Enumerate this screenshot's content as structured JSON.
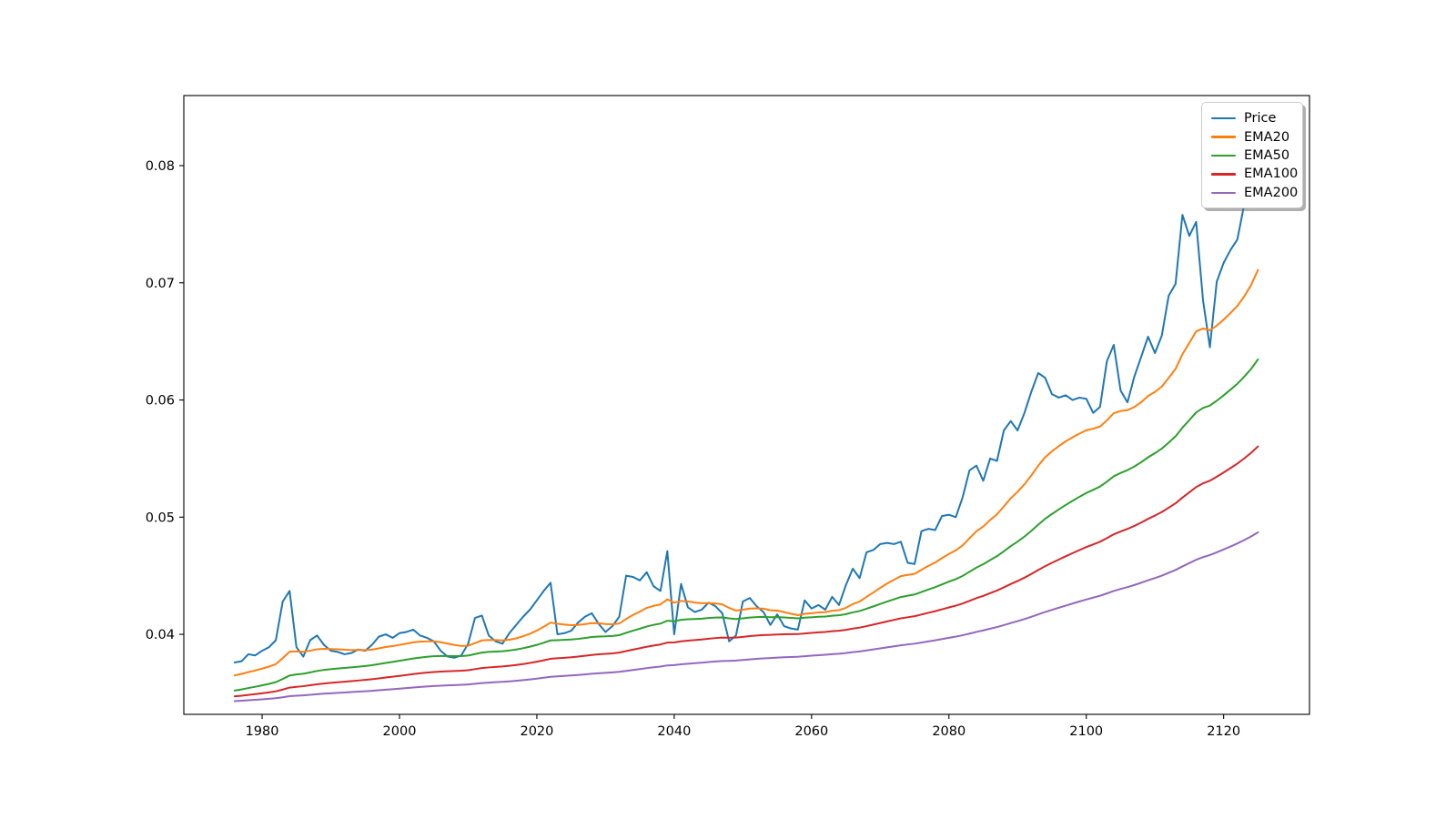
{
  "figure": {
    "background": "#ffffff",
    "spine_color": "#000000"
  },
  "chart_data": {
    "type": "line",
    "title": "",
    "xlabel": "",
    "ylabel": "",
    "grid": false,
    "legend_position": "upper right",
    "x_range": [
      1976,
      2125
    ],
    "x_step": 1,
    "xlim": [
      1968.6,
      2132.5
    ],
    "ylim": [
      0.03317,
      0.08598
    ],
    "xticks": [
      1980,
      2000,
      2020,
      2040,
      2060,
      2080,
      2100,
      2120
    ],
    "xtick_labels": [
      "1980",
      "2000",
      "2020",
      "2040",
      "2060",
      "2080",
      "2100",
      "2120"
    ],
    "yticks": [
      0.04,
      0.05,
      0.06,
      0.07,
      0.08
    ],
    "ytick_labels": [
      "0.04",
      "0.05",
      "0.06",
      "0.07",
      "0.08"
    ],
    "series": [
      {
        "name": "Price",
        "color": "#1f77b4",
        "values": [
          0.0376,
          0.0377,
          0.0383,
          0.0382,
          0.0386,
          0.0389,
          0.0395,
          0.0428,
          0.0437,
          0.0389,
          0.0381,
          0.0395,
          0.0399,
          0.0391,
          0.0386,
          0.0385,
          0.0383,
          0.0384,
          0.0387,
          0.0386,
          0.0391,
          0.0398,
          0.04,
          0.0397,
          0.0401,
          0.0402,
          0.0404,
          0.0399,
          0.0397,
          0.0394,
          0.0386,
          0.0381,
          0.038,
          0.0382,
          0.0392,
          0.0414,
          0.0416,
          0.0399,
          0.0394,
          0.0392,
          0.0401,
          0.0408,
          0.0415,
          0.0421,
          0.0429,
          0.0437,
          0.0444,
          0.04,
          0.0401,
          0.0403,
          0.041,
          0.0415,
          0.0418,
          0.0409,
          0.0402,
          0.0407,
          0.0415,
          0.045,
          0.0449,
          0.0446,
          0.0453,
          0.0441,
          0.0437,
          0.0471,
          0.04,
          0.0443,
          0.0423,
          0.0419,
          0.0421,
          0.0427,
          0.0424,
          0.0418,
          0.0394,
          0.0399,
          0.0428,
          0.0431,
          0.0424,
          0.0419,
          0.0408,
          0.0417,
          0.0407,
          0.0405,
          0.0404,
          0.0429,
          0.0422,
          0.0425,
          0.0421,
          0.0432,
          0.0425,
          0.0442,
          0.0456,
          0.0448,
          0.047,
          0.0472,
          0.0477,
          0.0478,
          0.0477,
          0.0479,
          0.0461,
          0.046,
          0.0488,
          0.049,
          0.0489,
          0.0501,
          0.0502,
          0.05,
          0.0517,
          0.054,
          0.0544,
          0.0531,
          0.055,
          0.0548,
          0.0574,
          0.0582,
          0.0574,
          0.0589,
          0.0607,
          0.0623,
          0.0619,
          0.0605,
          0.0602,
          0.0604,
          0.06,
          0.0602,
          0.0601,
          0.0589,
          0.0594,
          0.0633,
          0.0647,
          0.0608,
          0.0598,
          0.062,
          0.0637,
          0.0654,
          0.064,
          0.0655,
          0.0689,
          0.0699,
          0.0758,
          0.074,
          0.0752,
          0.0685,
          0.0645,
          0.0701,
          0.0717,
          0.0728,
          0.0737,
          0.0767,
          0.079,
          0.0833
        ]
      },
      {
        "name": "EMA20",
        "color": "#ff7f0e",
        "ema_period": 20,
        "ema_seed": 0.0365,
        "derived_from": "Price"
      },
      {
        "name": "EMA50",
        "color": "#2ca02c",
        "ema_period": 50,
        "ema_seed": 0.0352,
        "derived_from": "Price"
      },
      {
        "name": "EMA100",
        "color": "#d62728",
        "ema_period": 100,
        "ema_seed": 0.0347,
        "derived_from": "Price"
      },
      {
        "name": "EMA200",
        "color": "#9467bd",
        "ema_period": 200,
        "ema_seed": 0.0343,
        "derived_from": "Price"
      }
    ]
  }
}
